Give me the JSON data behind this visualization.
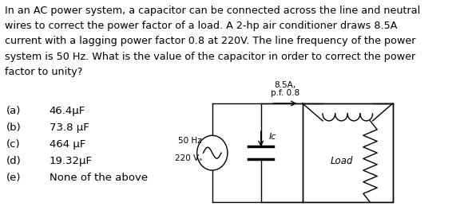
{
  "paragraph": "In an AC power system, a capacitor can be connected across the line and neutral\nwires to correct the power factor of a load. A 2-hp air conditioner draws 8.5A\ncurrent with a lagging power factor 0.8 at 220V. The line frequency of the power\nsystem is 50 Hz. What is the value of the capacitor in order to correct the power\nfactor to unity?",
  "options_a": "(a)",
  "options_b": "(b)",
  "options_c": "(c)",
  "options_d": "(d)",
  "options_e": "(e)",
  "val_a": "46.4μF",
  "val_b": "73.8 μF",
  "val_c": "464 μF",
  "val_d": "19.32μF",
  "val_e": "None of the above",
  "label_50hz": "50 Hz",
  "label_220v": "220 Vₐ⁣",
  "label_current": "8.5A,",
  "label_pf": "p.f. 0.8",
  "label_ic": "Iᴄ",
  "label_load": "Load",
  "bg_color": "#ffffff",
  "text_color": "#000000",
  "font_size_para": 9.2,
  "font_size_options": 9.5,
  "font_size_circuit": 7.5
}
